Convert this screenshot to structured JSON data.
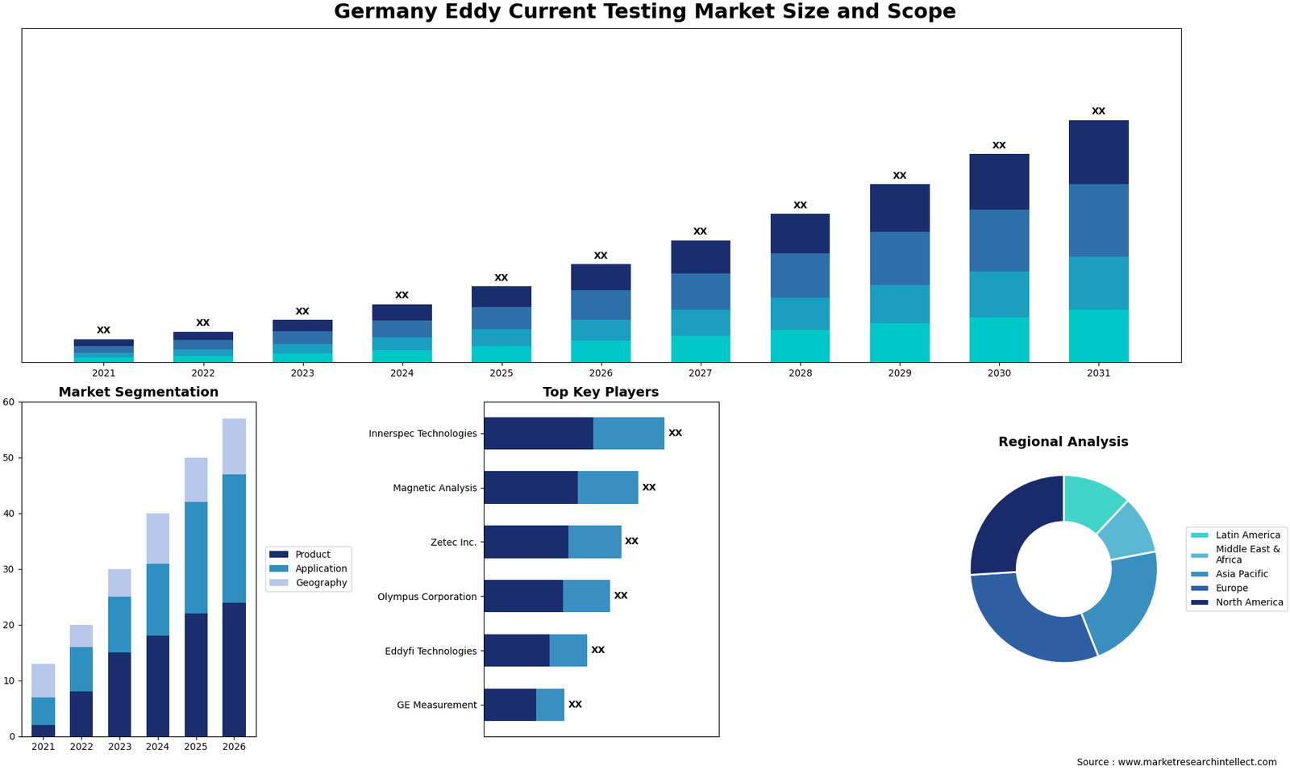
{
  "title": "Germany Eddy Current Testing Market Size and Scope",
  "annotations": [
    "Source : www.marketresearchintellect.com"
  ],
  "chart_data": [
    {
      "type": "bar",
      "stacked": true,
      "categories": [
        "2021",
        "2022",
        "2023",
        "2024",
        "2025",
        "2026",
        "2027",
        "2028",
        "2029",
        "2030",
        "2031"
      ],
      "series": [
        {
          "color": "#00c8c8",
          "values": [
            1.5,
            2.0,
            2.8,
            3.8,
            5.0,
            6.5,
            8.0,
            9.8,
            11.8,
            13.8,
            16.0
          ]
        },
        {
          "color": "#1a9fc0",
          "values": [
            1.5,
            2.0,
            2.8,
            3.8,
            5.0,
            6.5,
            8.0,
            9.8,
            11.8,
            13.8,
            16.0
          ]
        },
        {
          "color": "#2e6faa",
          "values": [
            2.0,
            2.8,
            3.8,
            5.2,
            6.8,
            8.8,
            11.0,
            13.4,
            16.0,
            18.8,
            22.0
          ]
        },
        {
          "color": "#1a2e6e",
          "values": [
            2.0,
            2.5,
            3.5,
            4.8,
            6.2,
            8.0,
            10.0,
            12.0,
            14.4,
            16.8,
            19.5
          ]
        }
      ],
      "ylim": [
        0,
        101.43
      ],
      "tick_labels": "x",
      "annotations": [
        {
          "category": "2021",
          "text": "XX"
        },
        {
          "category": "2022",
          "text": "XX"
        },
        {
          "category": "2023",
          "text": "XX"
        },
        {
          "category": "2024",
          "text": "XX"
        },
        {
          "category": "2025",
          "text": "XX"
        },
        {
          "category": "2026",
          "text": "XX"
        },
        {
          "category": "2027",
          "text": "XX"
        },
        {
          "category": "2028",
          "text": "XX"
        },
        {
          "category": "2029",
          "text": "XX"
        },
        {
          "category": "2030",
          "text": "XX"
        },
        {
          "category": "2031",
          "text": "XX"
        }
      ]
    },
    {
      "type": "bar",
      "stacked": true,
      "title": "Market Segmentation",
      "categories": [
        "2021",
        "2022",
        "2023",
        "2024",
        "2025",
        "2026"
      ],
      "series": [
        {
          "name": "Product",
          "color": "#1a2e6e",
          "values": [
            2,
            8,
            15,
            18,
            22,
            24
          ]
        },
        {
          "name": "Application",
          "color": "#2e8fc0",
          "values": [
            5,
            8,
            10,
            13,
            20,
            23
          ]
        },
        {
          "name": "Geography",
          "color": "#b8c8e8",
          "values": [
            6,
            4,
            5,
            9,
            8,
            10
          ]
        }
      ],
      "ylim": [
        0,
        60
      ],
      "yticks": [
        0,
        10,
        20,
        30,
        40,
        50,
        60
      ],
      "legend": "center left"
    },
    {
      "type": "bar",
      "stacked": true,
      "orientation": "horizontal",
      "title": "Top Key Players",
      "categories": [
        "Innerspec Technologies",
        "Magnetic Analysis",
        "Zetec Inc.",
        "Olympus Corporation",
        "Eddyfi Technologies",
        "GE Measurement"
      ],
      "series": [
        {
          "color": "#1a2e6e",
          "values": [
            5.8,
            5.0,
            4.5,
            4.2,
            3.5,
            2.8
          ]
        },
        {
          "color": "#3a8fc1",
          "values": [
            3.8,
            3.2,
            2.8,
            2.5,
            2.0,
            1.5
          ]
        }
      ],
      "xlim": [
        0,
        12.48
      ],
      "tick_labels": "y",
      "annotations": [
        {
          "category": "Innerspec Technologies",
          "text": "XX"
        },
        {
          "category": "Magnetic Analysis",
          "text": "XX"
        },
        {
          "category": "Zetec Inc.",
          "text": "XX"
        },
        {
          "category": "Olympus Corporation",
          "text": "XX"
        },
        {
          "category": "Eddyfi Technologies",
          "text": "XX"
        },
        {
          "category": "GE Measurement",
          "text": "XX"
        }
      ]
    },
    {
      "type": "donut",
      "title": "Regional Analysis",
      "categories": [
        "Latin America",
        "Middle East &\nAfrica",
        "Asia Pacific",
        "Europe",
        "North America"
      ],
      "values": [
        12,
        10,
        22,
        30,
        26
      ],
      "colors": [
        "#41d4c8",
        "#5ab8d4",
        "#3a8fc1",
        "#2e5fa3",
        "#1a2b6b"
      ],
      "legend": "center left"
    }
  ]
}
